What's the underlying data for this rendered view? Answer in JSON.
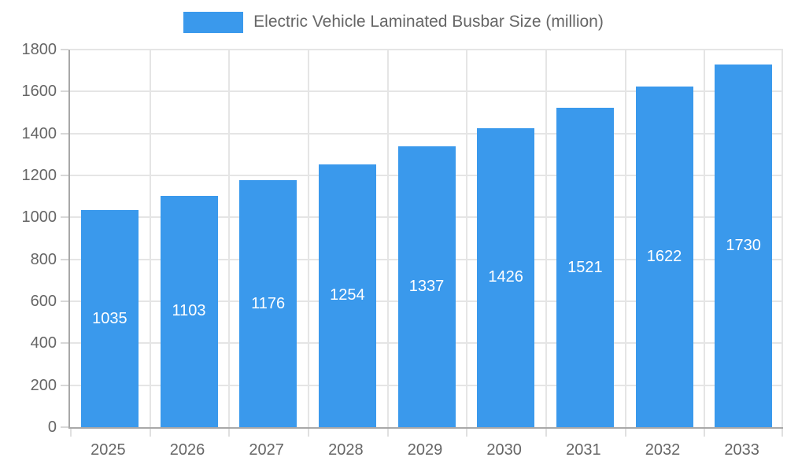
{
  "legend": {
    "label": "Electric Vehicle Laminated Busbar Size (million)"
  },
  "colors": {
    "bar": "#3a99ec",
    "axis_text": "#666666",
    "grid": "#e5e5e5",
    "axis_line": "#a8a8a8",
    "value_label": "#ffffff",
    "background": "#ffffff"
  },
  "chart_data": {
    "type": "bar",
    "title": "Electric Vehicle Laminated Busbar Size (million)",
    "categories": [
      "2025",
      "2026",
      "2027",
      "2028",
      "2029",
      "2030",
      "2031",
      "2032",
      "2033"
    ],
    "values": [
      1035,
      1103,
      1176,
      1254,
      1337,
      1426,
      1521,
      1622,
      1730
    ],
    "xlabel": "",
    "ylabel": "",
    "ylim": [
      0,
      1800
    ],
    "ytick_step": 200,
    "ytick_labels": [
      "0",
      "200",
      "400",
      "600",
      "800",
      "1000",
      "1200",
      "1400",
      "1600",
      "1800"
    ],
    "grid": true,
    "legend_position": "top",
    "value_labels_inside_bars": true
  }
}
